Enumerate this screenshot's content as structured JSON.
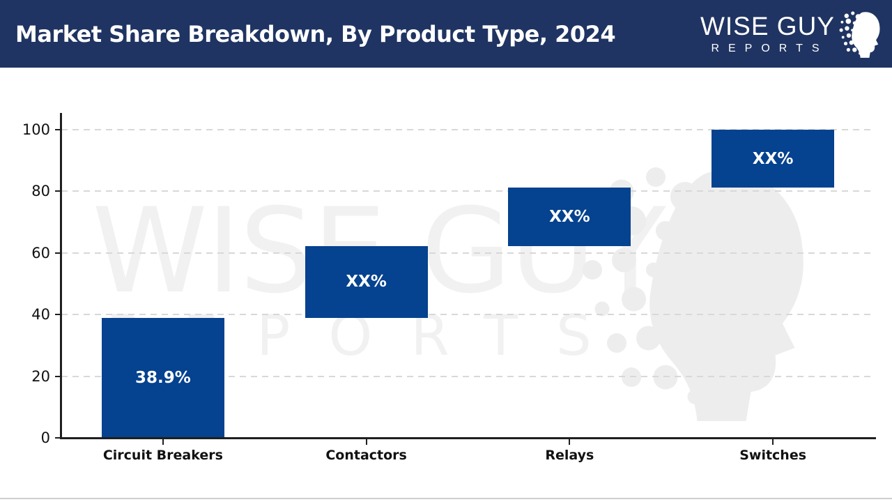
{
  "header": {
    "title": "Market Share Breakdown, By Product Type, 2024",
    "bg_color": "#1f3462",
    "logo": {
      "line1": "WISE GUY",
      "line2": "REPORTS"
    }
  },
  "watermark": {
    "line1": "WISE GUY",
    "line2": "REPORTS"
  },
  "chart_data": {
    "type": "bar",
    "subtype": "waterfall",
    "title": "Market Share Breakdown, By Product Type, 2024",
    "categories": [
      "Circuit Breakers",
      "Contactors",
      "Relays",
      "Switches"
    ],
    "series": [
      {
        "name": "Market Share",
        "starts": [
          0,
          38.9,
          62.3,
          81.2
        ],
        "ends": [
          38.9,
          62.3,
          81.2,
          100
        ]
      }
    ],
    "bar_labels": [
      "38.9%",
      "XX%",
      "XX%",
      "XX%"
    ],
    "yticks": [
      0,
      20,
      40,
      60,
      80,
      100
    ],
    "ylim": [
      0,
      100
    ],
    "xlabel": "",
    "ylabel": "",
    "grid": "dashed-horizontal",
    "legend": "none",
    "bar_color": "#05428f",
    "label_color": "#ffffff",
    "axis_color": "#1f1f1f",
    "gridline_color": "#d8d8d8"
  }
}
